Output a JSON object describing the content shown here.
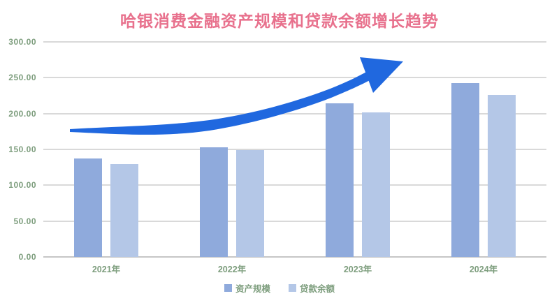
{
  "chart_data": {
    "type": "bar",
    "title": "哈银消费金融资产规模和贷款余额增长趋势",
    "categories": [
      "2021年",
      "2022年",
      "2023年",
      "2024年"
    ],
    "series": [
      {
        "name": "资产规模",
        "color": "#8FAADC",
        "values": [
          137,
          152.5,
          214,
          243
        ]
      },
      {
        "name": "贷款余额",
        "color": "#B4C7E7",
        "values": [
          130,
          149.5,
          202,
          226
        ]
      }
    ],
    "xlabel": "",
    "ylabel": "",
    "ylim": [
      0,
      300
    ],
    "yticks": [
      {
        "value": 300,
        "label": "300.00"
      },
      {
        "value": 250,
        "label": "250.00"
      },
      {
        "value": 200,
        "label": "200.00"
      },
      {
        "value": 150,
        "label": "150.00"
      },
      {
        "value": 100,
        "label": "100.00"
      },
      {
        "value": 50,
        "label": "50.00"
      },
      {
        "value": 0,
        "label": "0.00"
      }
    ],
    "grid": "horizontal",
    "legend_position": "bottom-center",
    "annotations": [
      {
        "type": "arrow",
        "description": "curved upward growth trend arrow",
        "color": "#2068DF"
      }
    ]
  },
  "colors": {
    "background": "#FFFFFF",
    "title_text": "#E8718D",
    "axis_text": "#7E9E7E",
    "gridline": "#D9D9D9",
    "axis_line": "#C6C6C6",
    "arrow": "#2068DF"
  }
}
